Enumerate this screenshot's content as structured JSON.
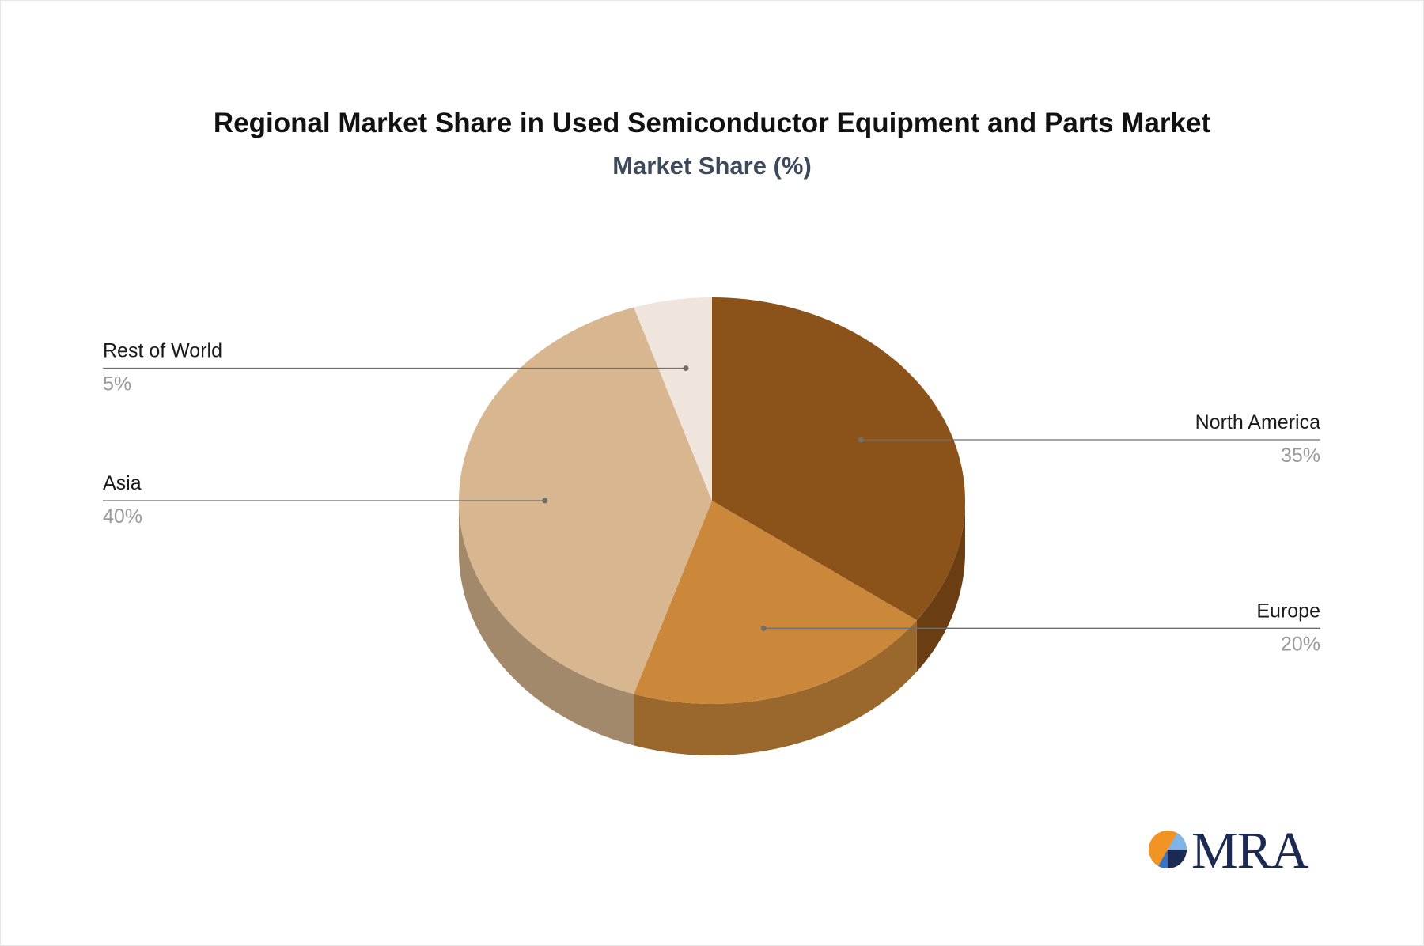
{
  "chart_data": {
    "type": "pie",
    "title": "Regional Market Share in Used Semiconductor Equipment and Parts Market",
    "subtitle": "Market Share (%)",
    "style": "3d",
    "slices": [
      {
        "label": "North America",
        "value": 35,
        "value_label": "35%",
        "color": "#8b5319",
        "side_color": "#6a3e12"
      },
      {
        "label": "Europe",
        "value": 20,
        "value_label": "20%",
        "color": "#cb883b",
        "side_color": "#9a672d"
      },
      {
        "label": "Asia",
        "value": 40,
        "value_label": "40%",
        "color": "#d7b690",
        "side_color": "#a3896c"
      },
      {
        "label": "Rest of World",
        "value": 5,
        "value_label": "5%",
        "color": "#efe5dc",
        "side_color": "#bcb2a8"
      }
    ]
  },
  "logo": {
    "text": "MRA",
    "colors": {
      "orange": "#f29423",
      "blue": "#3b73c4",
      "navy": "#1b2a52"
    }
  }
}
